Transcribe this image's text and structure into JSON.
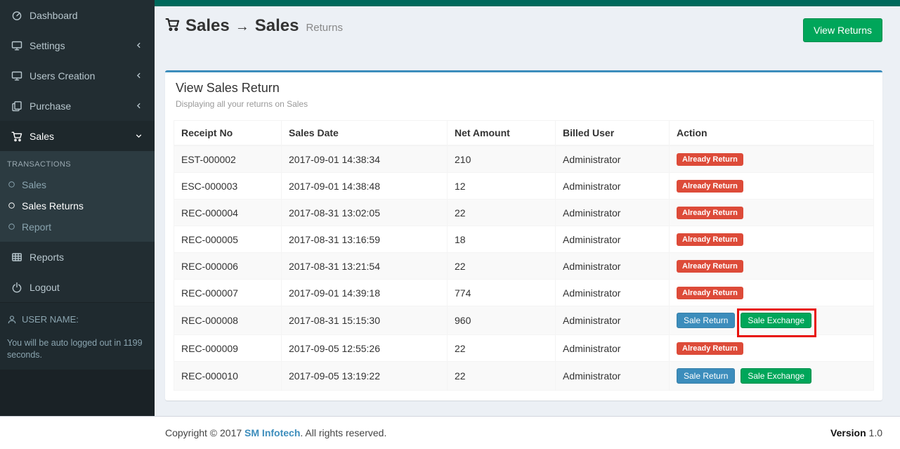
{
  "colors": {
    "topbar_teal": "#00695c",
    "sidebar_bg": "#222d32",
    "panel_accent": "#3c8dbc",
    "danger": "#dd4b39",
    "primary": "#3c8dbc",
    "success": "#00a65a",
    "annotation_red": "#e8120c"
  },
  "sidebar": {
    "dashboard": "Dashboard",
    "settings": "Settings",
    "users_creation": "Users Creation",
    "purchase": "Purchase",
    "sales": "Sales",
    "transactions_header": "TRANSACTIONS",
    "sub_sales": "Sales",
    "sub_sales_returns": "Sales Returns",
    "sub_report": "Report",
    "reports": "Reports",
    "logout": "Logout",
    "user_label": "USER NAME:",
    "logout_notice": "You will be auto logged out in 1199 seconds."
  },
  "header": {
    "title_primary": "Sales",
    "title_arrow": "→",
    "title_secondary": "Sales",
    "title_sub": "Returns",
    "view_returns_label": "View Returns"
  },
  "panel": {
    "title": "View Sales Return",
    "subtitle": "Displaying all your returns on Sales"
  },
  "table": {
    "columns": [
      "Receipt No",
      "Sales Date",
      "Net Amount",
      "Billed User",
      "Action"
    ],
    "rows": [
      {
        "receipt": "EST-000002",
        "date": "2017-09-01 14:38:34",
        "amount": "210",
        "user": "Administrator",
        "actions": [
          {
            "label": "Already Return",
            "style": "danger"
          }
        ]
      },
      {
        "receipt": "ESC-000003",
        "date": "2017-09-01 14:38:48",
        "amount": "12",
        "user": "Administrator",
        "actions": [
          {
            "label": "Already Return",
            "style": "danger"
          }
        ]
      },
      {
        "receipt": "REC-000004",
        "date": "2017-08-31 13:02:05",
        "amount": "22",
        "user": "Administrator",
        "actions": [
          {
            "label": "Already Return",
            "style": "danger"
          }
        ]
      },
      {
        "receipt": "REC-000005",
        "date": "2017-08-31 13:16:59",
        "amount": "18",
        "user": "Administrator",
        "actions": [
          {
            "label": "Already Return",
            "style": "danger"
          }
        ]
      },
      {
        "receipt": "REC-000006",
        "date": "2017-08-31 13:21:54",
        "amount": "22",
        "user": "Administrator",
        "actions": [
          {
            "label": "Already Return",
            "style": "danger"
          }
        ]
      },
      {
        "receipt": "REC-000007",
        "date": "2017-09-01 14:39:18",
        "amount": "774",
        "user": "Administrator",
        "actions": [
          {
            "label": "Already Return",
            "style": "danger"
          }
        ]
      },
      {
        "receipt": "REC-000008",
        "date": "2017-08-31 15:15:30",
        "amount": "960",
        "user": "Administrator",
        "actions": [
          {
            "label": "Sale Return",
            "style": "primary"
          },
          {
            "label": "Sale Exchange",
            "style": "success",
            "highlighted": true
          }
        ]
      },
      {
        "receipt": "REC-000009",
        "date": "2017-09-05 12:55:26",
        "amount": "22",
        "user": "Administrator",
        "actions": [
          {
            "label": "Already Return",
            "style": "danger"
          }
        ]
      },
      {
        "receipt": "REC-000010",
        "date": "2017-09-05 13:19:22",
        "amount": "22",
        "user": "Administrator",
        "actions": [
          {
            "label": "Sale Return",
            "style": "primary"
          },
          {
            "label": "Sale Exchange",
            "style": "success"
          }
        ]
      }
    ]
  },
  "footer": {
    "copyright_prefix": "Copyright © 2017 ",
    "brand": "SM Infotech",
    "copyright_suffix": ". All rights reserved.",
    "version_label": "Version",
    "version_value": "1.0"
  }
}
